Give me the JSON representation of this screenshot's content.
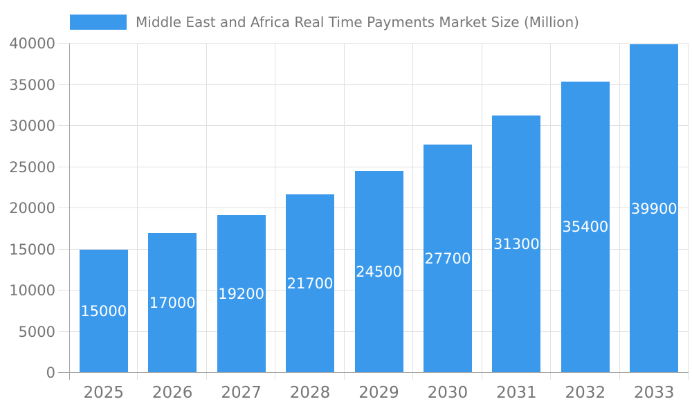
{
  "legend": {
    "swatch_color": "#3B99EC"
  },
  "chart_data": {
    "type": "bar",
    "title": "Middle East and Africa Real Time Payments Market Size (Million)",
    "categories": [
      "2025",
      "2026",
      "2027",
      "2028",
      "2029",
      "2030",
      "2031",
      "2032",
      "2033"
    ],
    "values": [
      15000,
      17000,
      19200,
      21700,
      24500,
      27700,
      31300,
      35400,
      39900
    ],
    "series": [
      {
        "name": "Middle East and Africa Real Time Payments Market Size (Million)",
        "values": [
          15000,
          17000,
          19200,
          21700,
          24500,
          27700,
          31300,
          35400,
          39900
        ]
      }
    ],
    "xlabel": "",
    "ylabel": "",
    "ylim": [
      0,
      40000
    ],
    "yticks": [
      0,
      5000,
      10000,
      15000,
      20000,
      25000,
      30000,
      35000,
      40000
    ],
    "grid": true,
    "legend_position": "top-left",
    "bar_color": "#3B99EC",
    "bar_label_color": "#FFFFFF",
    "axis_text_color": "#757575",
    "grid_color": "#E0E0E0",
    "axis_line_color": "#A3A3A3",
    "title_color": "#777777"
  }
}
